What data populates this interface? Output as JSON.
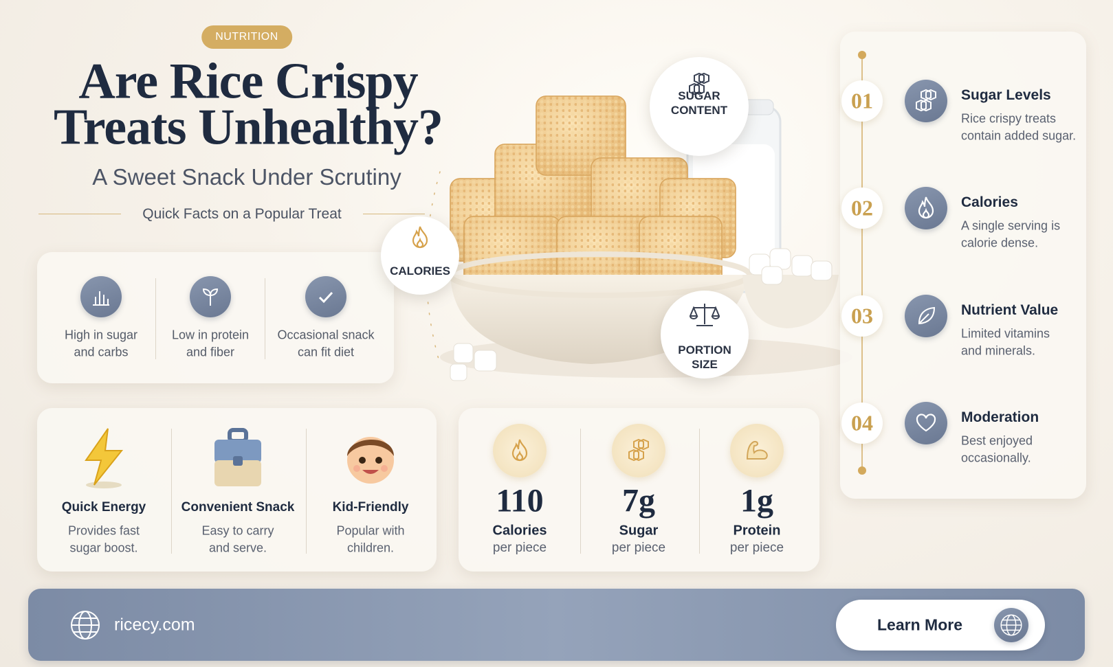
{
  "header": {
    "badge": "NUTRITION",
    "title_lines": [
      "Are Rice Crispy",
      "Treats Unhealthy?"
    ],
    "subtitle": "A Sweet Snack Under Scrutiny",
    "tagline": "Quick Facts on a Popular Treat"
  },
  "quick_facts": [
    {
      "lines": [
        "High in sugar",
        "and carbs"
      ]
    },
    {
      "lines": [
        "Low in protein",
        "and fiber"
      ]
    },
    {
      "lines": [
        "Occasional snack",
        "can fit diet"
      ]
    }
  ],
  "callouts": [
    {
      "lines": [
        "SUGAR",
        "CONTENT"
      ]
    },
    {
      "lines": [
        "CALORIES"
      ]
    },
    {
      "lines": [
        "PORTION",
        "SIZE"
      ]
    }
  ],
  "timeline": [
    {
      "number": "01",
      "title": "Sugar Levels",
      "lines": [
        "Rice crispy treats",
        "contain added sugar."
      ]
    },
    {
      "number": "02",
      "title": "Calories",
      "lines": [
        "A single serving is",
        "calorie dense."
      ]
    },
    {
      "number": "03",
      "title": "Nutrient Value",
      "lines": [
        "Limited vitamins",
        "and minerals."
      ]
    },
    {
      "number": "04",
      "title": "Moderation",
      "lines": [
        "Best enjoyed",
        "occasionally."
      ]
    }
  ],
  "benefits": [
    {
      "title": "Quick Energy",
      "lines": [
        "Provides fast",
        "sugar boost."
      ]
    },
    {
      "title": "Convenient Snack",
      "lines": [
        "Easy to carry",
        "and serve."
      ]
    },
    {
      "title": "Kid-Friendly",
      "lines": [
        "Popular with",
        "children."
      ]
    }
  ],
  "stats": [
    {
      "value": "110",
      "label": "Calories",
      "sub": "per piece"
    },
    {
      "value": "7g",
      "label": "Sugar",
      "sub": "per piece"
    },
    {
      "value": "1g",
      "label": "Protein",
      "sub": "per piece"
    }
  ],
  "footer": {
    "site": "ricecy.com",
    "button": "Learn More"
  }
}
